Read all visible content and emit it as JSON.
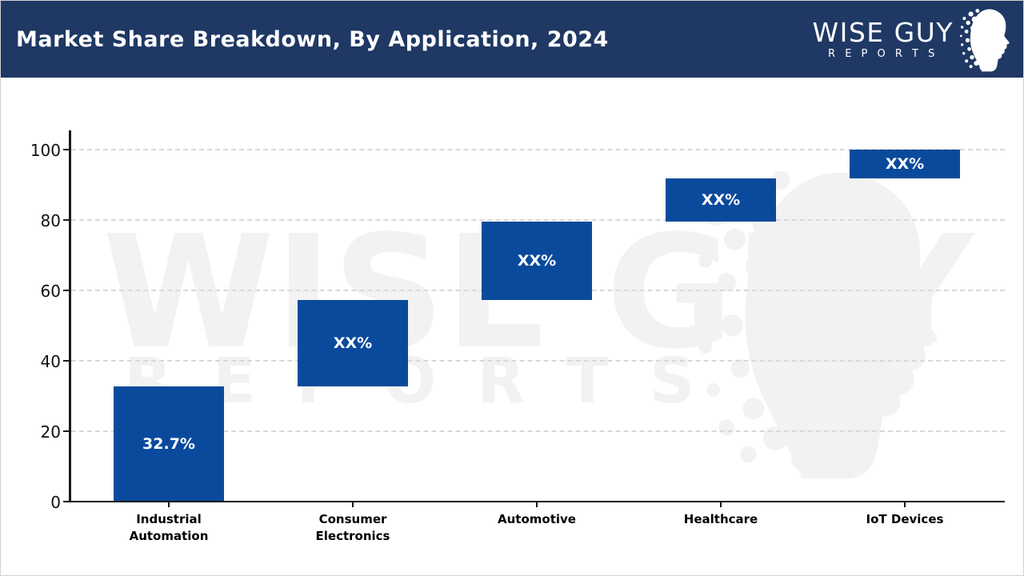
{
  "header": {
    "title": "Market Share Breakdown, By Application, 2024",
    "logo": {
      "wordmark": "WISE GUY",
      "reports": "R E P O R T S"
    }
  },
  "watermark": {
    "wordmark": "WISE GUY",
    "reports": "R E P O R T S"
  },
  "colors": {
    "header_bg": "#1f3864",
    "bar": "#0a4a9c",
    "bar_label": "#ffffff",
    "gridline": "#d9d9d9",
    "axis": "#1a1a1a",
    "watermark": "#f2f2f3"
  },
  "chart_data": {
    "type": "bar",
    "subtype": "waterfall",
    "title": "Market Share Breakdown, By Application, 2024",
    "categories": [
      "Industrial Automation",
      "Consumer Electronics",
      "Automotive",
      "Healthcare",
      "IoT Devices"
    ],
    "category_lines": [
      [
        "Industrial",
        "Automation"
      ],
      [
        "Consumer",
        "Electronics"
      ],
      [
        "Automotive"
      ],
      [
        "Healthcare"
      ],
      [
        "IoT Devices"
      ]
    ],
    "segments": [
      {
        "category": "Industrial Automation",
        "label": "32.7%",
        "start": 0,
        "end": 32.7
      },
      {
        "category": "Consumer Electronics",
        "label": "XX%",
        "start": 32.7,
        "end": 57.3
      },
      {
        "category": "Automotive",
        "label": "XX%",
        "start": 57.3,
        "end": 79.5
      },
      {
        "category": "Healthcare",
        "label": "XX%",
        "start": 79.5,
        "end": 91.8
      },
      {
        "category": "IoT Devices",
        "label": "XX%",
        "start": 91.8,
        "end": 100
      }
    ],
    "xlabel": "",
    "ylabel": "",
    "ylim": [
      0,
      100
    ],
    "yticks": [
      0,
      20,
      40,
      60,
      80,
      100
    ],
    "grid": "horizontal-dashed",
    "legend": "none"
  }
}
